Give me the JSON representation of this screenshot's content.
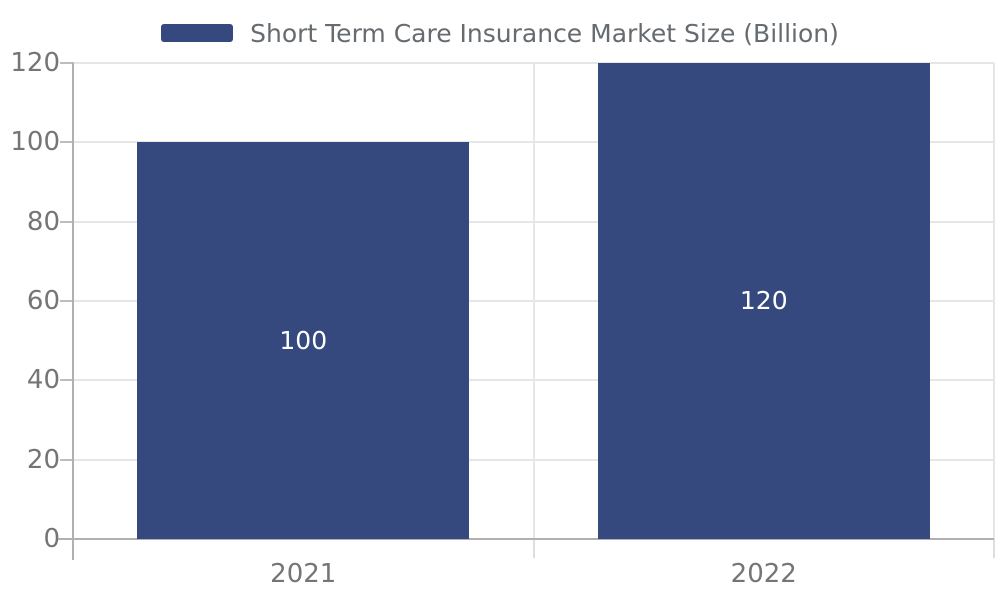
{
  "legend": {
    "label": "Short Term Care Insurance Market Size (Billion)",
    "swatch_color": "#36497f"
  },
  "chart_data": {
    "type": "bar",
    "title": "Short Term Care Insurance Market Size (Billion)",
    "categories": [
      "2021",
      "2022"
    ],
    "values": [
      100,
      120
    ],
    "data_labels": [
      "100",
      "120"
    ],
    "xlabel": "",
    "ylabel": "",
    "ylim": [
      0,
      120
    ],
    "yticks": [
      0,
      20,
      40,
      60,
      80,
      100,
      120
    ],
    "grid": true,
    "legend_position": "top-center",
    "bar_color": "#36497f",
    "data_label_color": "#ffffff",
    "axis_label_color": "#757575"
  }
}
